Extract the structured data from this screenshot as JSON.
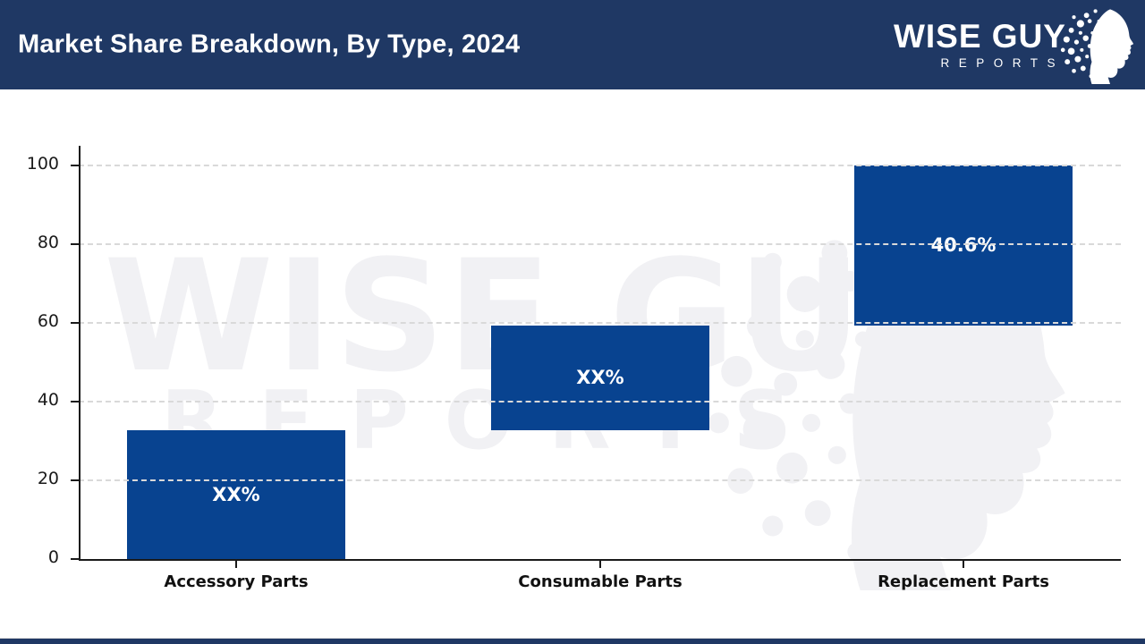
{
  "header": {
    "title": "Market Share Breakdown, By Type, 2024",
    "logo_line1": "WISE GUY",
    "logo_line2": "REPORTS"
  },
  "watermark": {
    "line1": "WISE GUY",
    "line2": "REPORTS"
  },
  "chart_data": {
    "type": "bar",
    "subtype": "floating-segment-waterfall",
    "title": "Market Share Breakdown, By Type, 2024",
    "categories": [
      "Accessory Parts",
      "Consumable Parts",
      "Replacement Parts"
    ],
    "segments": [
      {
        "category": "Accessory Parts",
        "start": 0,
        "end": 32.7,
        "label": "XX%"
      },
      {
        "category": "Consumable Parts",
        "start": 32.7,
        "end": 59.4,
        "label": "XX%"
      },
      {
        "category": "Replacement Parts",
        "start": 59.4,
        "end": 100,
        "label": "40.6%"
      }
    ],
    "xlabel": "",
    "ylabel": "",
    "yticks": [
      0,
      20,
      40,
      60,
      80,
      100
    ],
    "ylim": [
      0,
      105
    ],
    "grid": "horizontal-dashed",
    "legend": "none",
    "colors": {
      "bar": "#084390",
      "bar_label": "#ffffff",
      "header_bg": "#1F3864",
      "footer_bg": "#1F3864",
      "grid": "#d9d9d9",
      "axis": "#1a1a1a",
      "watermark": "#f1f1f4"
    }
  }
}
